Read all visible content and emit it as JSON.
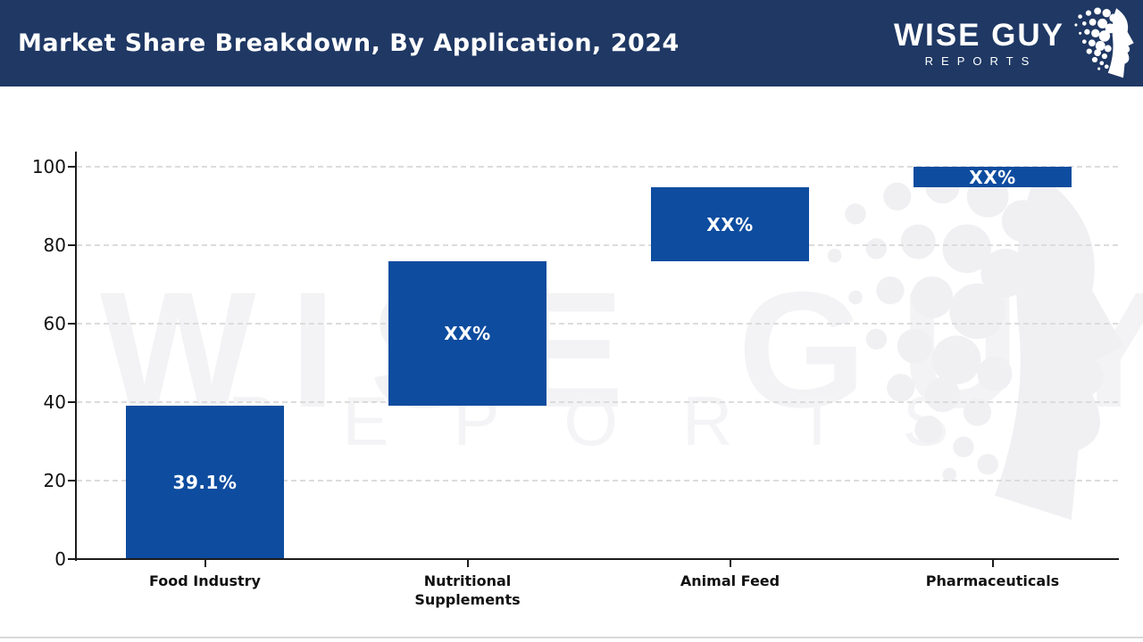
{
  "header": {
    "title": "Market Share Breakdown, By Application, 2024",
    "logo": {
      "wordmark": "WISE GUY",
      "subtext": "REPORTS"
    }
  },
  "watermark": {
    "line1": "WISE GUY",
    "line2": "REPORTS"
  },
  "colors": {
    "header_bg": "#1f3864",
    "bar": "#0d4c9f",
    "bar_label": "#ffffff",
    "gridline": "#dcdcdc",
    "axis": "#1c1c1c",
    "tick_label": "#111111",
    "watermark": "#f3f3f5",
    "panel_bg": "#ffffff"
  },
  "chart_data": {
    "type": "bar",
    "subtype": "waterfall",
    "title": "Market Share Breakdown, By Application, 2024",
    "categories": [
      "Food Industry",
      "Nutritional Supplements",
      "Animal Feed",
      "Pharmaceuticals"
    ],
    "segments": [
      {
        "category": "Food Industry",
        "start": 0,
        "end": 39.1,
        "label": "39.1%"
      },
      {
        "category": "Nutritional Supplements",
        "start": 39.1,
        "end": 76,
        "label": "XX%"
      },
      {
        "category": "Animal Feed",
        "start": 76,
        "end": 94.8,
        "label": "XX%"
      },
      {
        "category": "Pharmaceuticals",
        "start": 94.8,
        "end": 100,
        "label": "XX%"
      }
    ],
    "ylim": [
      0,
      100
    ],
    "yticks": [
      0,
      20,
      40,
      60,
      80,
      100
    ],
    "xlabel": "",
    "ylabel": "",
    "grid": "horizontal-dashed",
    "legend": "none"
  }
}
